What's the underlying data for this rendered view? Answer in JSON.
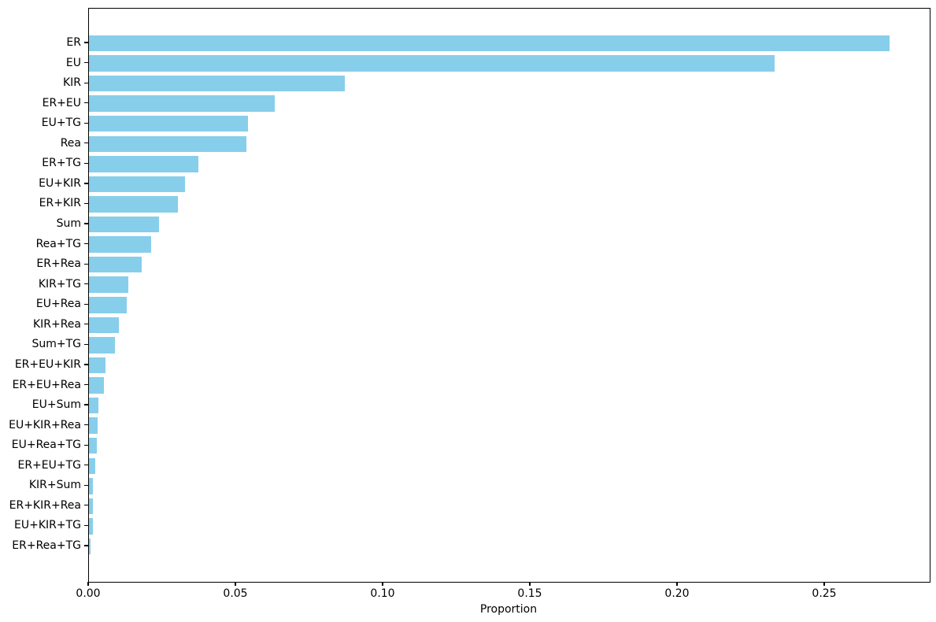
{
  "chart_data": {
    "type": "bar",
    "orientation": "horizontal",
    "title": "",
    "xlabel": "Proportion",
    "ylabel": "",
    "categories": [
      "ER",
      "EU",
      "KIR",
      "ER+EU",
      "EU+TG",
      "Rea",
      "ER+TG",
      "EU+KIR",
      "ER+KIR",
      "Sum",
      "Rea+TG",
      "ER+Rea",
      "KIR+TG",
      "EU+Rea",
      "KIR+Rea",
      "Sum+TG",
      "ER+EU+KIR",
      "ER+EU+Rea",
      "EU+Sum",
      "EU+KIR+Rea",
      "EU+Rea+TG",
      "ER+EU+TG",
      "KIR+Sum",
      "ER+KIR+Rea",
      "EU+KIR+TG",
      "ER+Rea+TG"
    ],
    "values": [
      0.2719,
      0.2328,
      0.0869,
      0.0631,
      0.054,
      0.0535,
      0.0372,
      0.0326,
      0.0302,
      0.0238,
      0.0211,
      0.0179,
      0.0134,
      0.0128,
      0.0102,
      0.0088,
      0.0056,
      0.0051,
      0.0031,
      0.003,
      0.0026,
      0.0022,
      0.0014,
      0.0014,
      0.0013,
      0.0006
    ],
    "xlim": [
      0.0,
      0.2856
    ],
    "xticks": [
      0.0,
      0.05,
      0.1,
      0.15,
      0.2,
      0.25
    ],
    "xtick_labels": [
      "0.00",
      "0.05",
      "0.10",
      "0.15",
      "0.20",
      "0.25"
    ],
    "bar_color": "#87CEEB",
    "axis_color": "#000000",
    "background_color": "#ffffff",
    "grid": false,
    "legend": null
  }
}
